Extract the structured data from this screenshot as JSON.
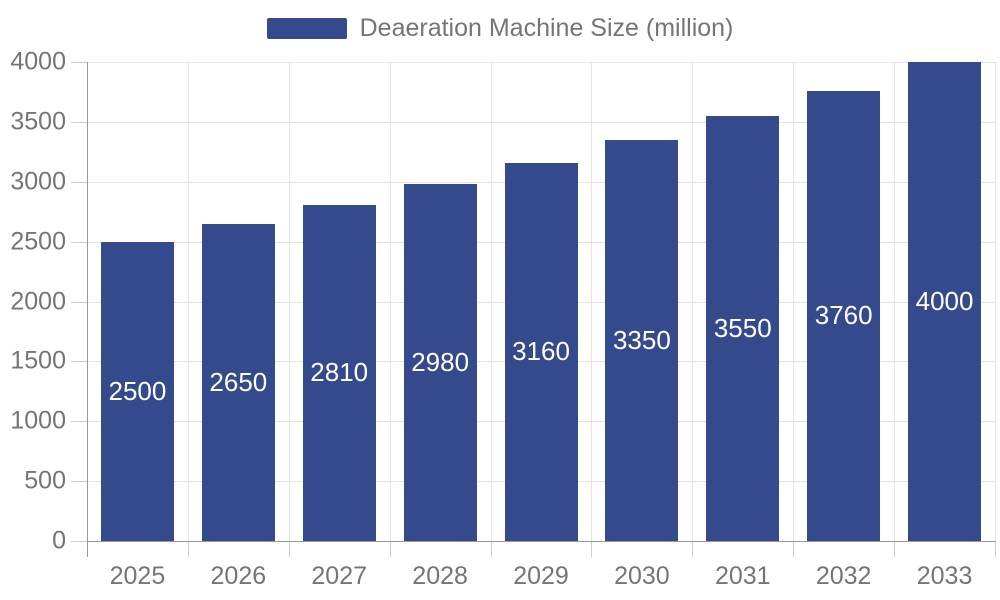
{
  "legend": {
    "label": "Deaeration Machine Size (million)"
  },
  "chart_data": {
    "type": "bar",
    "title": "Deaeration Machine Size (million)",
    "categories": [
      "2025",
      "2026",
      "2027",
      "2028",
      "2029",
      "2030",
      "2031",
      "2032",
      "2033"
    ],
    "values": [
      2500,
      2650,
      2810,
      2980,
      3160,
      3350,
      3550,
      3760,
      4000
    ],
    "series": [
      {
        "name": "Deaeration Machine Size (million)",
        "values": [
          2500,
          2650,
          2810,
          2980,
          3160,
          3350,
          3550,
          3760,
          4000
        ]
      }
    ],
    "xlabel": "",
    "ylabel": "",
    "ylim": [
      0,
      4000
    ],
    "yticks": [
      0,
      500,
      1000,
      1500,
      2000,
      2500,
      3000,
      3500,
      4000
    ],
    "grid": true,
    "legend_position": "top-center",
    "value_labels": "inside-center-white"
  },
  "colors": {
    "background": "#FFFFFF",
    "bar": "#354A8C",
    "grid_line": "#E3E3E3",
    "axis_line": "#999999",
    "tick": "#CCCCCC",
    "axis_text": "#757575",
    "legend_text": "#757575",
    "value_text": "#FFFFFF"
  }
}
